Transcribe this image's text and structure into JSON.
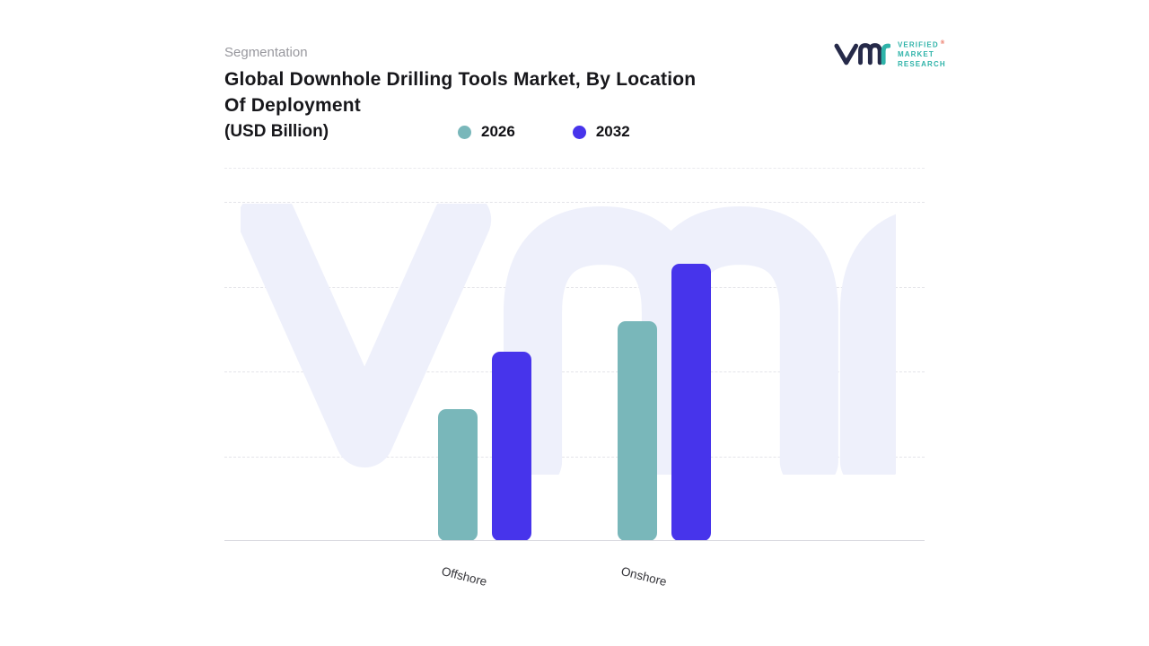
{
  "header": {
    "eyebrow": "Segmentation",
    "title_line1": "Global Downhole Drilling Tools Market, By Location",
    "title_line2": "Of Deployment",
    "units": "(USD Billion)"
  },
  "logo": {
    "lines": [
      "VERIFIED",
      "MARKET",
      "RESEARCH"
    ],
    "registered": "®",
    "mark_dark_color": "#262a49",
    "accent_color": "#2fb3a9"
  },
  "legend": [
    {
      "label": "2026",
      "color": "#79b7ba"
    },
    {
      "label": "2032",
      "color": "#4734eb"
    }
  ],
  "watermark": {
    "text": "vmr",
    "color": "#eef0fb"
  },
  "chart_data": {
    "type": "bar",
    "title": "Global Downhole Drilling Tools Market, By Location Of Deployment (USD Billion)",
    "categories": [
      "Offshore",
      "Onshore"
    ],
    "series": [
      {
        "name": "2026",
        "color": "#79b7ba",
        "values": [
          1.5,
          2.5
        ]
      },
      {
        "name": "2032",
        "color": "#4734eb",
        "values": [
          2.15,
          3.15
        ]
      }
    ],
    "xlabel": "",
    "ylabel": "",
    "ylim": [
      0,
      3.85
    ],
    "grid": "horizontal-dashed",
    "legend_position": "top"
  }
}
